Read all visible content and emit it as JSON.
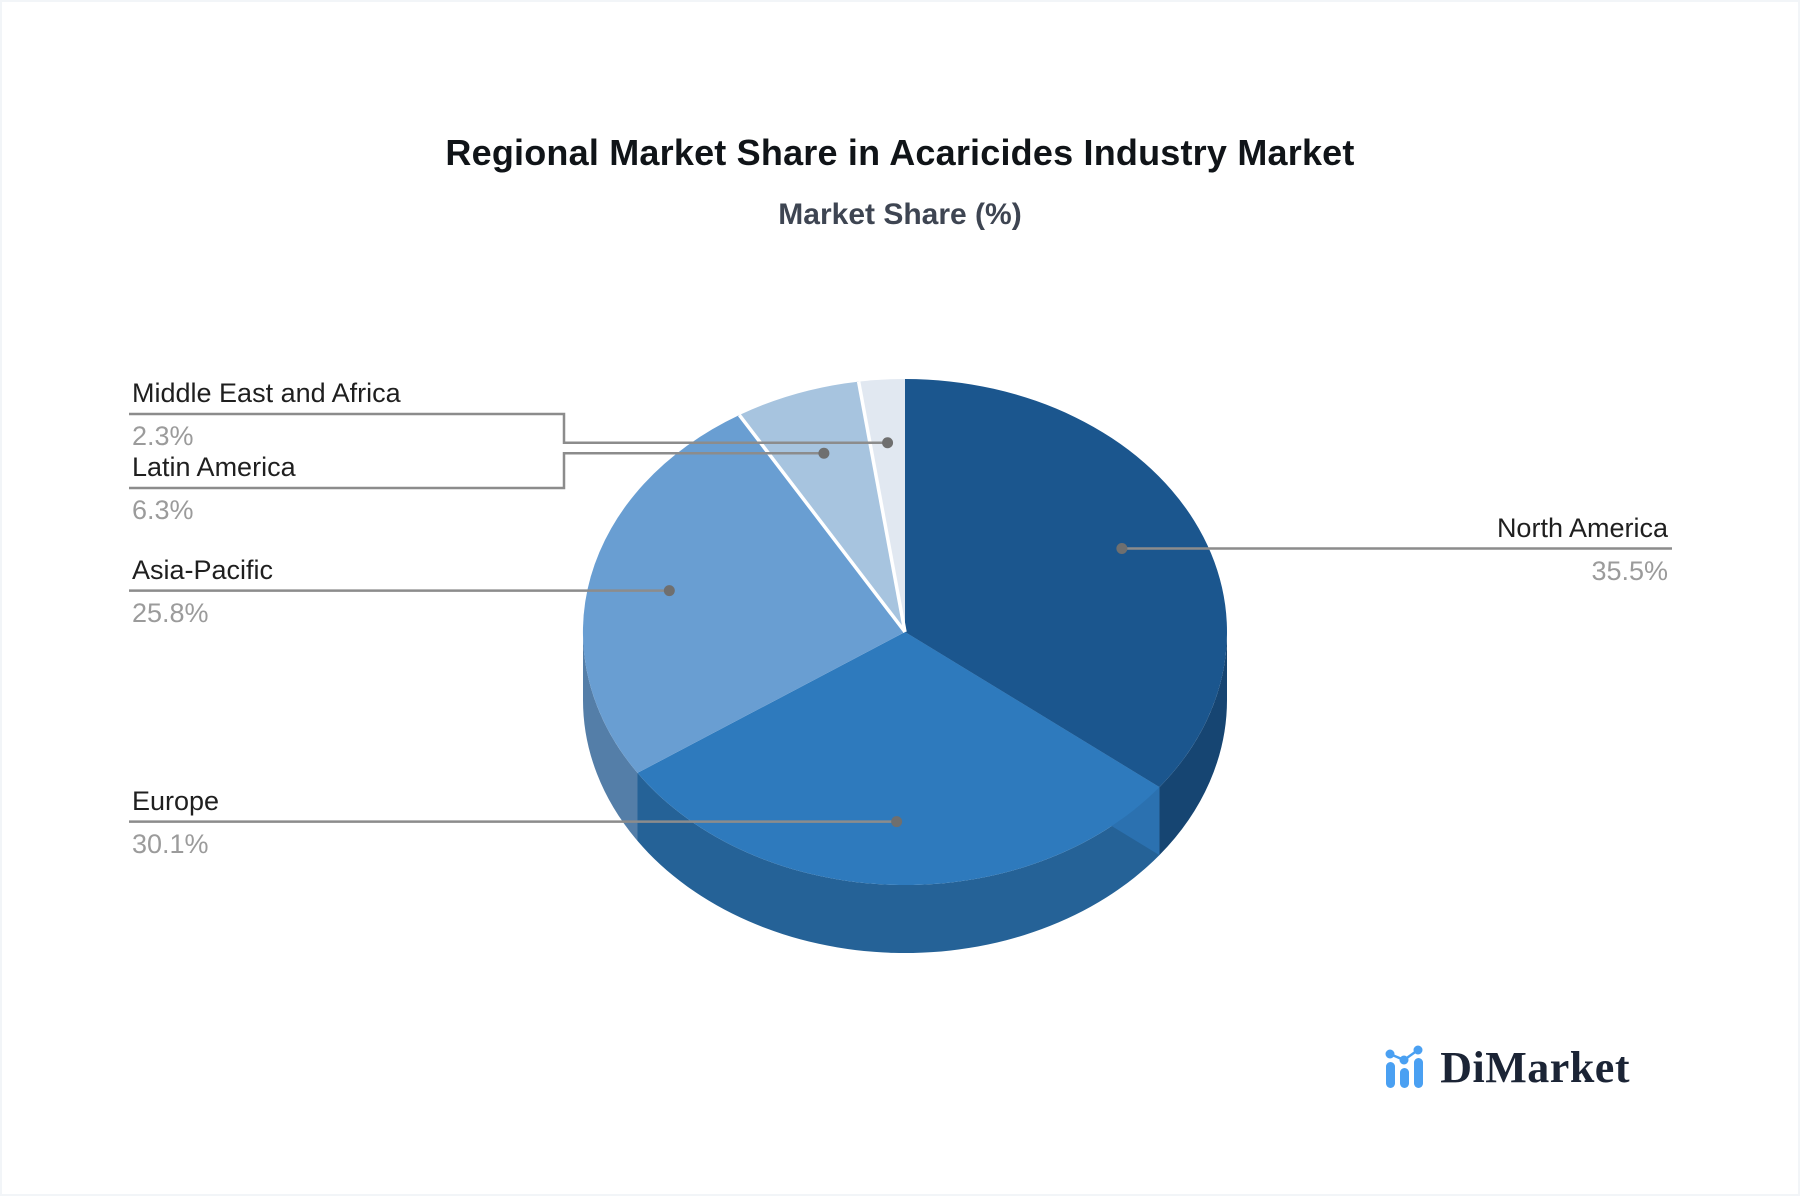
{
  "title": "Regional Market Share in Acaricides Industry Market",
  "subtitle": "Market Share (%)",
  "logo": {
    "text": "DiMarket",
    "icon": "bar-chart-logo-icon",
    "icon_color": "#4aa0f2",
    "text_color": "#1b2435"
  },
  "chart_data": {
    "type": "pie",
    "style": "3d",
    "title": "Regional Market Share in Acaricides Industry Market",
    "subtitle": "Market Share (%)",
    "unit": "%",
    "start_angle": "top",
    "direction": "clockwise",
    "legend_position": "none",
    "slices": [
      {
        "label": "North America",
        "value": 35.5,
        "pct_label": "35.5%",
        "color": "#1b568e",
        "label_side": "right"
      },
      {
        "label": "Europe",
        "value": 30.1,
        "pct_label": "30.1%",
        "color": "#2e7abd",
        "label_side": "left"
      },
      {
        "label": "Asia-Pacific",
        "value": 25.8,
        "pct_label": "25.8%",
        "color": "#699ed2",
        "label_side": "left"
      },
      {
        "label": "Latin America",
        "value": 6.3,
        "pct_label": "6.3%",
        "color": "#a7c4df",
        "label_side": "left"
      },
      {
        "label": "Middle East and Africa",
        "value": 2.3,
        "pct_label": "2.3%",
        "color": "#e1e8f1",
        "label_side": "left"
      }
    ],
    "leader_line_color": "#8c8c8c",
    "dot_color": "#6f6f6f",
    "label_color": "#1f1f1f",
    "pct_color": "#9b9b9b",
    "title_color": "#101418",
    "subtitle_color": "#3e4552",
    "background_color": "#ffffff"
  }
}
